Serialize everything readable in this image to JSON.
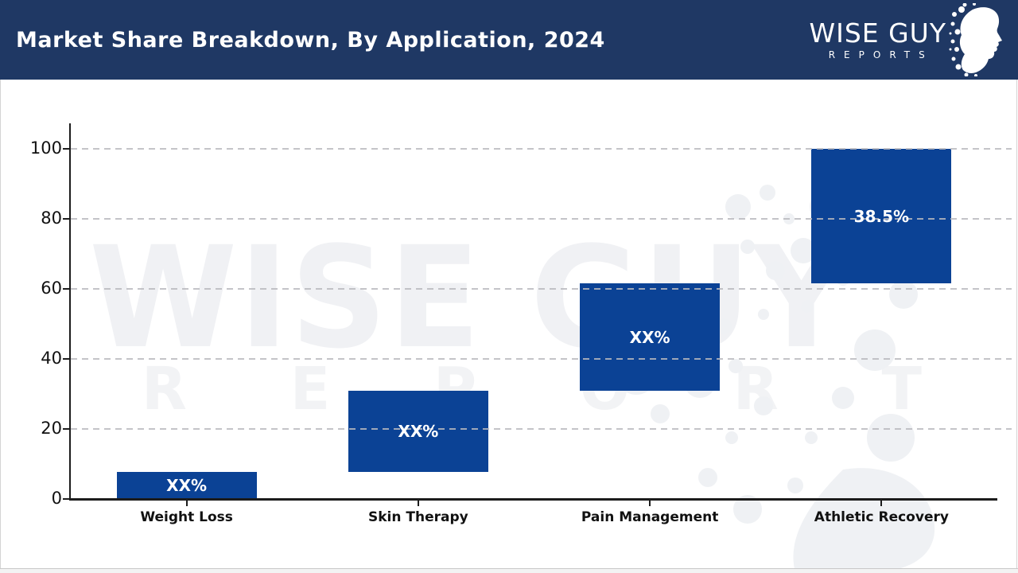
{
  "header": {
    "title": "Market Share Breakdown, By Application, 2024",
    "logo": {
      "line1": "WISE GUY",
      "line2": "REPORTS"
    }
  },
  "watermark": {
    "line1": "WISE GUY",
    "line2": "R E P O R T S"
  },
  "colors": {
    "header_bg": "#1f3864",
    "bar": "#0b4295",
    "axis": "#1c1c1c",
    "grid": "#cdcdcd",
    "watermark": "#f0f1f4",
    "bar_label_text": "#ffffff",
    "title_text": "#ffffff"
  },
  "chart_data": {
    "type": "bar",
    "subtype": "waterfall",
    "title": "Market Share Breakdown, By Application, 2024",
    "categories": [
      "Weight Loss",
      "Skin Therapy",
      "Pain Management",
      "Athletic Recovery"
    ],
    "segments": [
      {
        "category": "Weight Loss",
        "start": 0,
        "end": 7.7,
        "value_label": "XX%"
      },
      {
        "category": "Skin Therapy",
        "start": 7.7,
        "end": 31,
        "value_label": "XX%"
      },
      {
        "category": "Pain Management",
        "start": 31,
        "end": 61.5,
        "value_label": "XX%"
      },
      {
        "category": "Athletic Recovery",
        "start": 61.5,
        "end": 100,
        "value_label": "38.5%"
      }
    ],
    "values": [
      7.7,
      23.3,
      30.5,
      38.5
    ],
    "ylim": [
      0,
      100
    ],
    "yticks": [
      0,
      20,
      40,
      60,
      80,
      100
    ],
    "grid": "dashed-horizontal-drawn-over-bars",
    "legend": "none",
    "xlabel": "",
    "ylabel": ""
  }
}
